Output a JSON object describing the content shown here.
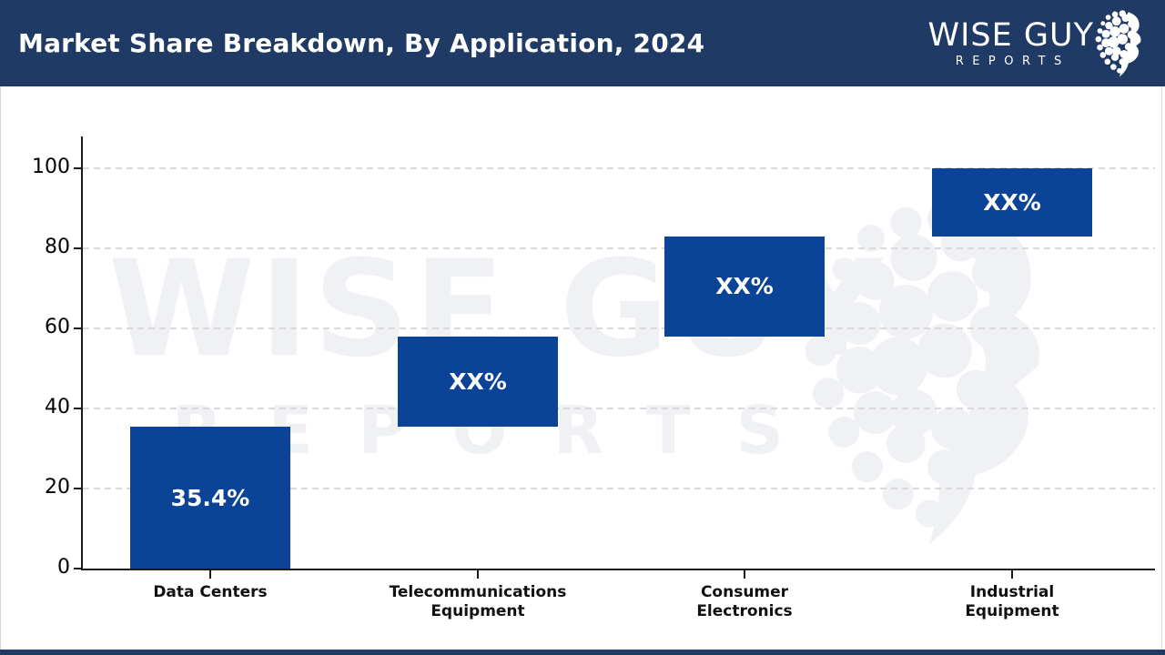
{
  "header": {
    "title": "Market Share Breakdown, By Application, 2024",
    "bg_color": "#1f3a64"
  },
  "logo": {
    "name": "WISE GUY",
    "subtitle": "REPORTS"
  },
  "watermark": {
    "name": "WISE GUY",
    "subtitle": "REPORTS"
  },
  "chart_data": {
    "type": "bar",
    "subtype": "floating-waterfall",
    "title": "Market Share Breakdown, By Application, 2024",
    "categories": [
      "Data Centers",
      "Telecommunications\nEquipment",
      "Consumer\nElectronics",
      "Industrial\nEquipment"
    ],
    "series": [
      {
        "name": "Market Share",
        "segments": [
          {
            "category": "Data Centers",
            "start": 0,
            "end": 35.4,
            "label": "35.4%"
          },
          {
            "category": "Telecommunications Equipment",
            "start": 35.4,
            "end": 58,
            "label": "XX%"
          },
          {
            "category": "Consumer Electronics",
            "start": 58,
            "end": 83,
            "label": "XX%"
          },
          {
            "category": "Industrial Equipment",
            "start": 83,
            "end": 100,
            "label": "XX%"
          }
        ]
      }
    ],
    "ylim": [
      0,
      100
    ],
    "yticks": [
      0,
      20,
      40,
      60,
      80,
      100
    ],
    "grid": "horizontal-dashed",
    "legend": "none",
    "bar_color": "#0b4397",
    "bar_label_color": "#ffffff",
    "axis_color": "#1a1a1a",
    "gridline_color": "#d9d9d9"
  }
}
